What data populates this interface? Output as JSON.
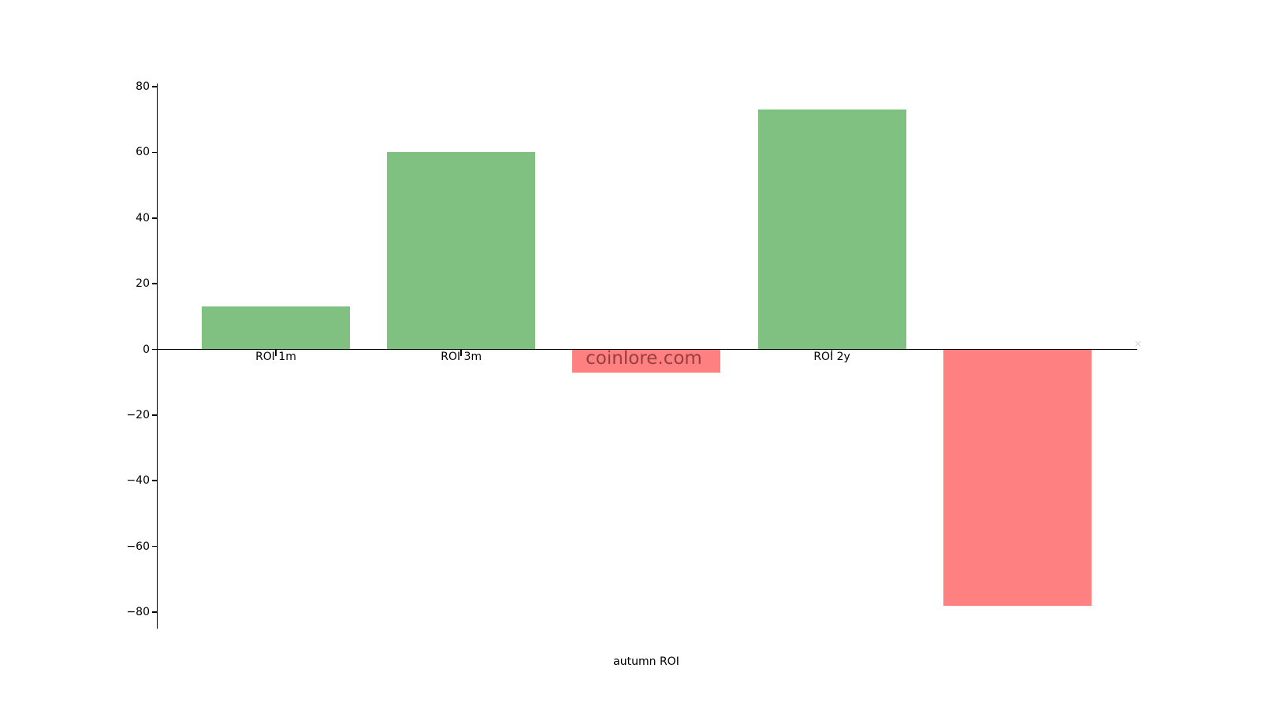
{
  "colors": {
    "background": "#ffffff",
    "positive_bar": "#80c080",
    "negative_bar": "#ff8080",
    "axis": "#000000"
  },
  "watermark": {
    "text": "coinlore.com",
    "color": "#953f41"
  },
  "decorations": {
    "axis_end_marker": "×",
    "axis_end_marker_color": "#d9d9d9"
  },
  "chart_data": {
    "type": "bar",
    "title": "",
    "xlabel": "autumn ROI",
    "ylabel": "",
    "categories": [
      "ROI 1m",
      "ROI 3m",
      "",
      "ROI 2y",
      ""
    ],
    "values": [
      13,
      60,
      -7,
      73,
      -78
    ],
    "bar_colors": [
      "#80c080",
      "#80c080",
      "#ff8080",
      "#80c080",
      "#ff8080"
    ],
    "yticks": [
      80,
      60,
      40,
      20,
      0,
      -20,
      -40,
      -60,
      -80
    ],
    "ytick_labels": [
      "80",
      "60",
      "40",
      "20",
      "0",
      "−20",
      "−40",
      "−60",
      "−80"
    ],
    "ylim": [
      -85,
      81
    ],
    "grid": false,
    "legend": null
  }
}
